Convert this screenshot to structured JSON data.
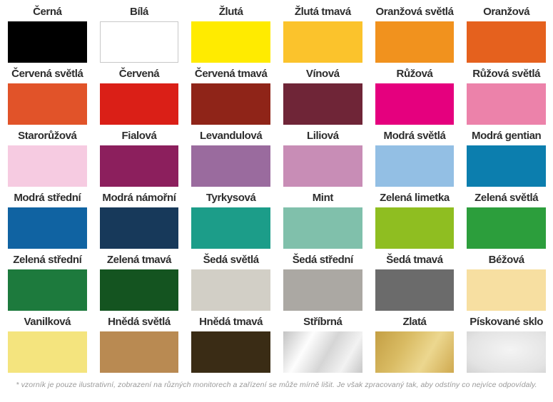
{
  "footnote": "* vzorník je pouze ilustrativní, zobrazení na různých monitorech a zařízení se může mírně lišit. Je však zpracovaný tak, aby odstíny co nejvíce odpovídaly.",
  "label_color": "#2d2d2d",
  "swatches": [
    {
      "name": "Černá",
      "color": "#000000"
    },
    {
      "name": "Bílá",
      "color": "#ffffff",
      "border": "#c8c8c8"
    },
    {
      "name": "Žlutá",
      "color": "#ffeb00"
    },
    {
      "name": "Žlutá tmavá",
      "color": "#fbc32c"
    },
    {
      "name": "Oranžová světlá",
      "color": "#f1921e"
    },
    {
      "name": "Oranžová",
      "color": "#e5611e"
    },
    {
      "name": "Červená světlá",
      "color": "#e15329"
    },
    {
      "name": "Červená",
      "color": "#da1f17"
    },
    {
      "name": "Červená tmavá",
      "color": "#8f2418"
    },
    {
      "name": "Vínová",
      "color": "#6f2537"
    },
    {
      "name": "Růžová",
      "color": "#e5007e"
    },
    {
      "name": "Růžová světlá",
      "color": "#ec82aa"
    },
    {
      "name": "Starorůžová",
      "color": "#f6cbe1"
    },
    {
      "name": "Fialová",
      "color": "#8c1f5d"
    },
    {
      "name": "Levandulová",
      "color": "#9a6b9e"
    },
    {
      "name": "Liliová",
      "color": "#c88db6"
    },
    {
      "name": "Modrá světlá",
      "color": "#93bfe4"
    },
    {
      "name": "Modrá gentian",
      "color": "#0c7eae"
    },
    {
      "name": "Modrá střední",
      "color": "#1063a2"
    },
    {
      "name": "Modrá námořní",
      "color": "#17395a"
    },
    {
      "name": "Tyrkysová",
      "color": "#1c9d89"
    },
    {
      "name": "Mint",
      "color": "#80c0ab"
    },
    {
      "name": "Zelená limetka",
      "color": "#8fbe21"
    },
    {
      "name": "Zelená světlá",
      "color": "#2c9e3c"
    },
    {
      "name": "Zelená střední",
      "color": "#1d7a3d"
    },
    {
      "name": "Zelená tmavá",
      "color": "#145420"
    },
    {
      "name": "Šedá světlá",
      "color": "#d2cfc6"
    },
    {
      "name": "Šedá střední",
      "color": "#aba8a3"
    },
    {
      "name": "Šedá tmavá",
      "color": "#6b6b6b"
    },
    {
      "name": "Béžová",
      "color": "#f7dfa1"
    },
    {
      "name": "Vanilková",
      "color": "#f4e47e"
    },
    {
      "name": "Hnědá světlá",
      "color": "#b98a52"
    },
    {
      "name": "Hnědá tmavá",
      "color": "#3a2c15"
    },
    {
      "name": "Stříbrná",
      "gradient": {
        "type": "linear",
        "angle": 120,
        "stops": [
          [
            "#c3c3c3",
            "0%"
          ],
          [
            "#fdfdfd",
            "30%"
          ],
          [
            "#d5d5d5",
            "55%"
          ],
          [
            "#f2f2f2",
            "78%"
          ],
          [
            "#c6c6c6",
            "100%"
          ]
        ]
      }
    },
    {
      "name": "Zlatá",
      "gradient": {
        "type": "linear",
        "angle": 120,
        "stops": [
          [
            "#c49f44",
            "0%"
          ],
          [
            "#d9bb63",
            "35%"
          ],
          [
            "#ecd78f",
            "65%"
          ],
          [
            "#cfa94f",
            "100%"
          ]
        ]
      }
    },
    {
      "name": "Pískované sklo",
      "gradient": {
        "type": "radial",
        "stops": [
          [
            "#f4f4f4",
            "0%"
          ],
          [
            "#e3e3e3",
            "70%"
          ],
          [
            "#d3d3d3",
            "100%"
          ]
        ]
      }
    }
  ]
}
